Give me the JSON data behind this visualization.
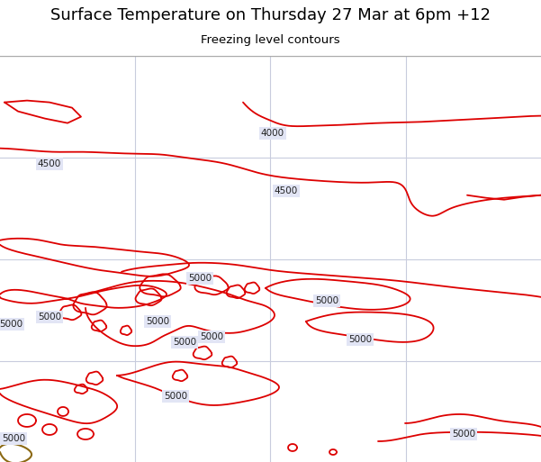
{
  "title": "Surface Temperature on Thursday 27 Mar at 6pm +12",
  "subtitle": "Freezing level contours",
  "bg_color": "#e8eaf6",
  "map_bg_color": "#e2e5f5",
  "contour_color": "#dd0000",
  "label_color": "#222222",
  "grid_color": "#c8ccdd",
  "title_fontsize": 13,
  "subtitle_fontsize": 9.5,
  "figsize": [
    6.01,
    5.13
  ],
  "dpi": 100,
  "border_color": "#888888",
  "white_bg": "#ffffff"
}
